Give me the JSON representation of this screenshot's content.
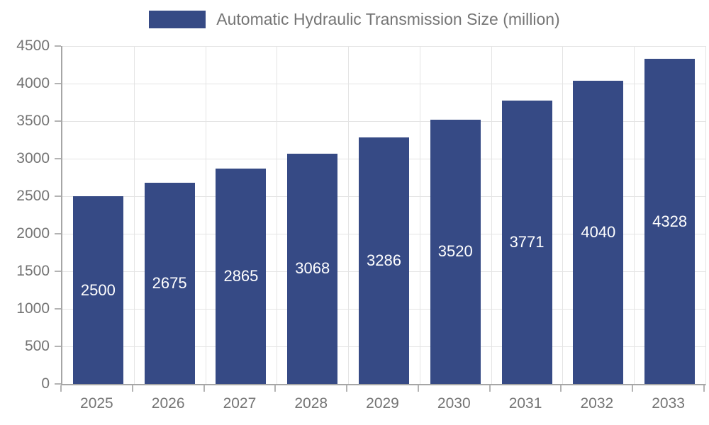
{
  "legend": {
    "label": "Automatic Hydraulic Transmission Size (million)"
  },
  "chart_data": {
    "type": "bar",
    "title": "Automatic Hydraulic Transmission Size (million)",
    "series_name": "Automatic Hydraulic Transmission Size (million)",
    "categories": [
      "2025",
      "2026",
      "2027",
      "2028",
      "2029",
      "2030",
      "2031",
      "2032",
      "2033"
    ],
    "values": [
      2500,
      2675,
      2865,
      3068,
      3286,
      3520,
      3771,
      4040,
      4328
    ],
    "value_labels": [
      "2500",
      "2675",
      "2865",
      "3068",
      "3286",
      "3520",
      "3771",
      "4040",
      "4328"
    ],
    "xlabel": "",
    "ylabel": "",
    "ylim": [
      0,
      4500
    ],
    "ytick_step": 500,
    "ytick_labels": [
      "0",
      "500",
      "1000",
      "1500",
      "2000",
      "2500",
      "3000",
      "3500",
      "4000",
      "4500"
    ],
    "grid": true,
    "legend_position": "top",
    "colors": {
      "bar": "#364a85",
      "bar_label_text": "#ffffff",
      "axis_text": "#747474",
      "legend_text": "#757575",
      "gridline": "#e4e4e4",
      "axis_line": "#a6a6a6"
    }
  }
}
